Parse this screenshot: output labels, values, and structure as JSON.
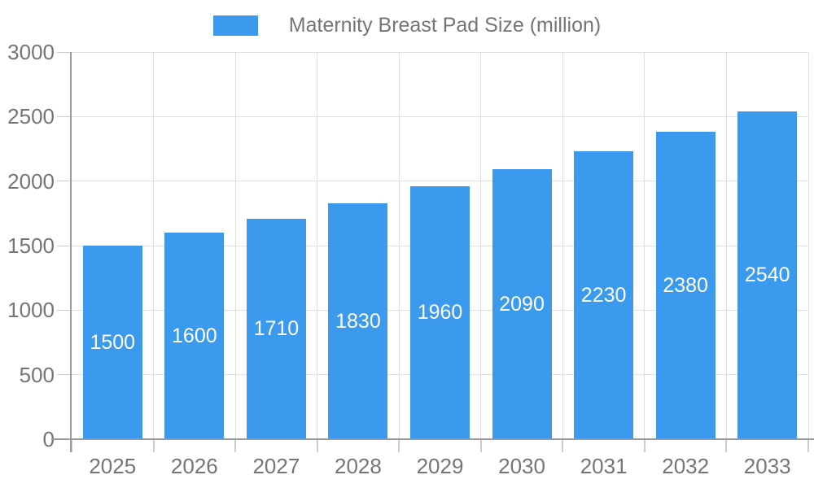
{
  "chart_data": {
    "type": "bar",
    "title": "Maternity Breast Pad Size (million)",
    "legend": {
      "position": "top",
      "label": "Maternity Breast Pad Size (million)"
    },
    "categories": [
      "2025",
      "2026",
      "2027",
      "2028",
      "2029",
      "2030",
      "2031",
      "2032",
      "2033"
    ],
    "series": [
      {
        "name": "Maternity Breast Pad Size (million)",
        "values": [
          1500,
          1600,
          1710,
          1830,
          1960,
          2090,
          2230,
          2380,
          2540
        ]
      }
    ],
    "value_labels_shown": true,
    "xlabel": "",
    "ylabel": "",
    "ylim": [
      0,
      3000
    ],
    "yticks": [
      0,
      500,
      1000,
      1500,
      2000,
      2500,
      3000
    ],
    "grid": true,
    "colors": {
      "bar": "#3B99EE",
      "value_text": "#ffffff",
      "axis_text": "#757575",
      "grid_line": "#e0e0e0",
      "axis_line": "#999999",
      "tick": "#cccccc",
      "background": "#ffffff"
    }
  }
}
